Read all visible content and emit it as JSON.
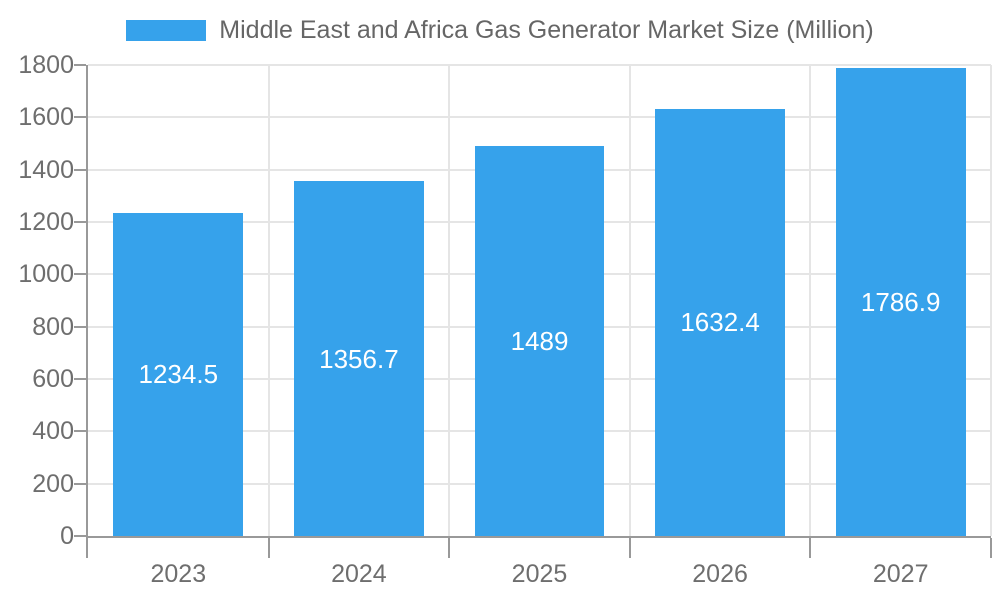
{
  "legend": {
    "label": "Middle East and Africa Gas Generator Market Size (Million)"
  },
  "chart_data": {
    "type": "bar",
    "title": "Middle East and Africa Gas Generator Market Size (Million)",
    "categories": [
      "2023",
      "2024",
      "2025",
      "2026",
      "2027"
    ],
    "values": [
      1234.5,
      1356.7,
      1489,
      1632.4,
      1786.9
    ],
    "value_labels": [
      "1234.5",
      "1356.7",
      "1489",
      "1632.4",
      "1786.9"
    ],
    "xlabel": "",
    "ylabel": "",
    "ylim": [
      0,
      1800
    ],
    "yticks": [
      0,
      200,
      400,
      600,
      800,
      1000,
      1200,
      1400,
      1600,
      1800
    ],
    "grid": true,
    "legend_position": "top",
    "value_label_position": "inside-center",
    "bar_color": "#36a2eb",
    "value_label_color": "#ffffff",
    "axis_color": "#999999",
    "gridline_color": "#e5e5e5",
    "tick_label_color": "#6e6e6e",
    "legend_text_color": "#666666"
  }
}
